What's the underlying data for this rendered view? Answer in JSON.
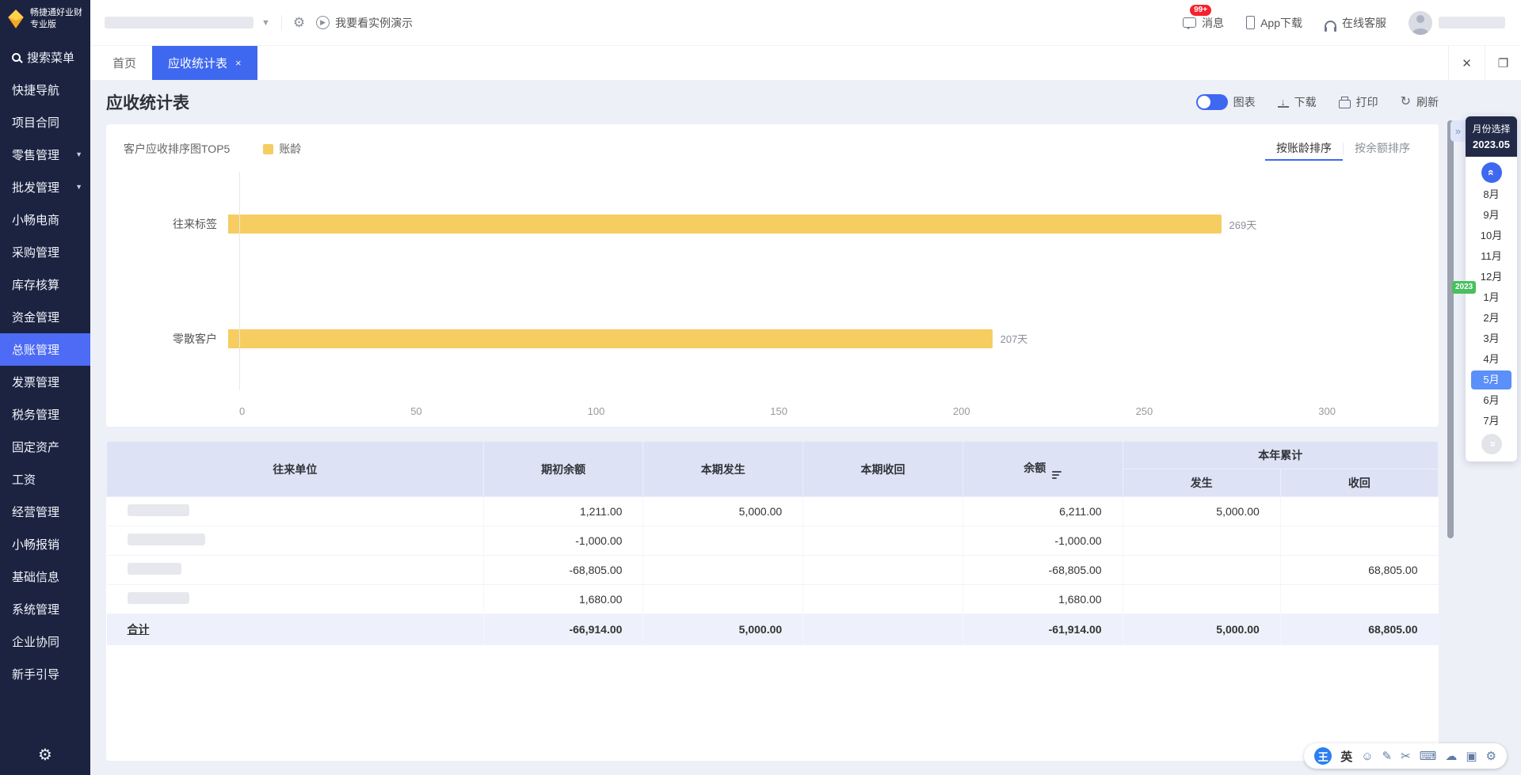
{
  "brand": {
    "name_line1": "畅捷通好业财",
    "name_line2": "专业版"
  },
  "sidebar": {
    "items": [
      {
        "label": "搜索菜单"
      },
      {
        "label": "快捷导航"
      },
      {
        "label": "项目合同"
      },
      {
        "label": "零售管理",
        "expandable": true
      },
      {
        "label": "批发管理",
        "expandable": true
      },
      {
        "label": "小畅电商"
      },
      {
        "label": "采购管理"
      },
      {
        "label": "库存核算"
      },
      {
        "label": "资金管理"
      },
      {
        "label": "总账管理",
        "active": true
      },
      {
        "label": "发票管理"
      },
      {
        "label": "税务管理"
      },
      {
        "label": "固定资产"
      },
      {
        "label": "工资"
      },
      {
        "label": "经营管理"
      },
      {
        "label": "小畅报销"
      },
      {
        "label": "基础信息"
      },
      {
        "label": "系统管理"
      },
      {
        "label": "企业协同"
      },
      {
        "label": "新手引导"
      }
    ]
  },
  "topbar": {
    "demo_label": "我要看实例演示",
    "message_label": "消息",
    "message_badge": "99+",
    "app_download_label": "App下载",
    "support_label": "在线客服"
  },
  "tabbar": {
    "tabs": [
      {
        "label": "首页",
        "active": false
      },
      {
        "label": "应收统计表",
        "active": true,
        "closable": true
      }
    ]
  },
  "page": {
    "title": "应收统计表",
    "chart_toggle_label": "图表",
    "download_label": "下载",
    "print_label": "打印",
    "refresh_label": "刷新"
  },
  "chart_data": {
    "type": "bar",
    "orientation": "horizontal",
    "title": "客户应收排序图TOP5",
    "legend": [
      {
        "label": "账龄",
        "color": "#f6cd60"
      }
    ],
    "legend_position": "top-left",
    "grid": false,
    "sort_tabs": [
      {
        "label": "按账龄排序",
        "active": true
      },
      {
        "label": "按余额排序",
        "active": false
      }
    ],
    "categories": [
      "往来标签",
      "零散客户"
    ],
    "values": [
      269,
      207
    ],
    "value_labels": [
      "269天",
      "207天"
    ],
    "unit": "天",
    "xlim": [
      0,
      300
    ],
    "xticks": [
      "0",
      "50",
      "100",
      "150",
      "200",
      "250",
      "300"
    ],
    "bar_color": "#f6cd60"
  },
  "table": {
    "columns": [
      "往来单位",
      "期初余额",
      "本期发生",
      "本期收回",
      "余额"
    ],
    "group_column": "本年累计",
    "sub_columns": [
      "发生",
      "收回"
    ],
    "rows": [
      {
        "values": [
          "1,211.00",
          "5,000.00",
          "",
          "6,211.00",
          "5,000.00",
          ""
        ]
      },
      {
        "values": [
          "-1,000.00",
          "",
          "",
          "-1,000.00",
          "",
          ""
        ]
      },
      {
        "values": [
          "-68,805.00",
          "",
          "",
          "-68,805.00",
          "",
          "68,805.00"
        ]
      },
      {
        "values": [
          "1,680.00",
          "",
          "",
          "1,680.00",
          "",
          ""
        ]
      }
    ],
    "total_label": "合计",
    "total_values": [
      "-66,914.00",
      "5,000.00",
      "",
      "-61,914.00",
      "5,000.00",
      "68,805.00"
    ]
  },
  "month_panel": {
    "title": "月份选择",
    "current": "2023.05",
    "year_badge": "2023",
    "months": [
      "8月",
      "9月",
      "10月",
      "11月",
      "12月",
      "1月",
      "2月",
      "3月",
      "4月",
      "5月",
      "6月",
      "7月"
    ],
    "selected_index": 9
  },
  "ime": {
    "logo": "王",
    "lang": "英",
    "icons": [
      "☺",
      "✎",
      "✂",
      "⌨",
      "☁",
      "▣",
      "⚙"
    ]
  },
  "colors": {
    "accent_blue": "#3f68f0",
    "sidebar_bg": "#1b2340",
    "bar_yellow": "#f6cd60",
    "badge_red": "#f5222d",
    "badge_green": "#49c05d"
  }
}
